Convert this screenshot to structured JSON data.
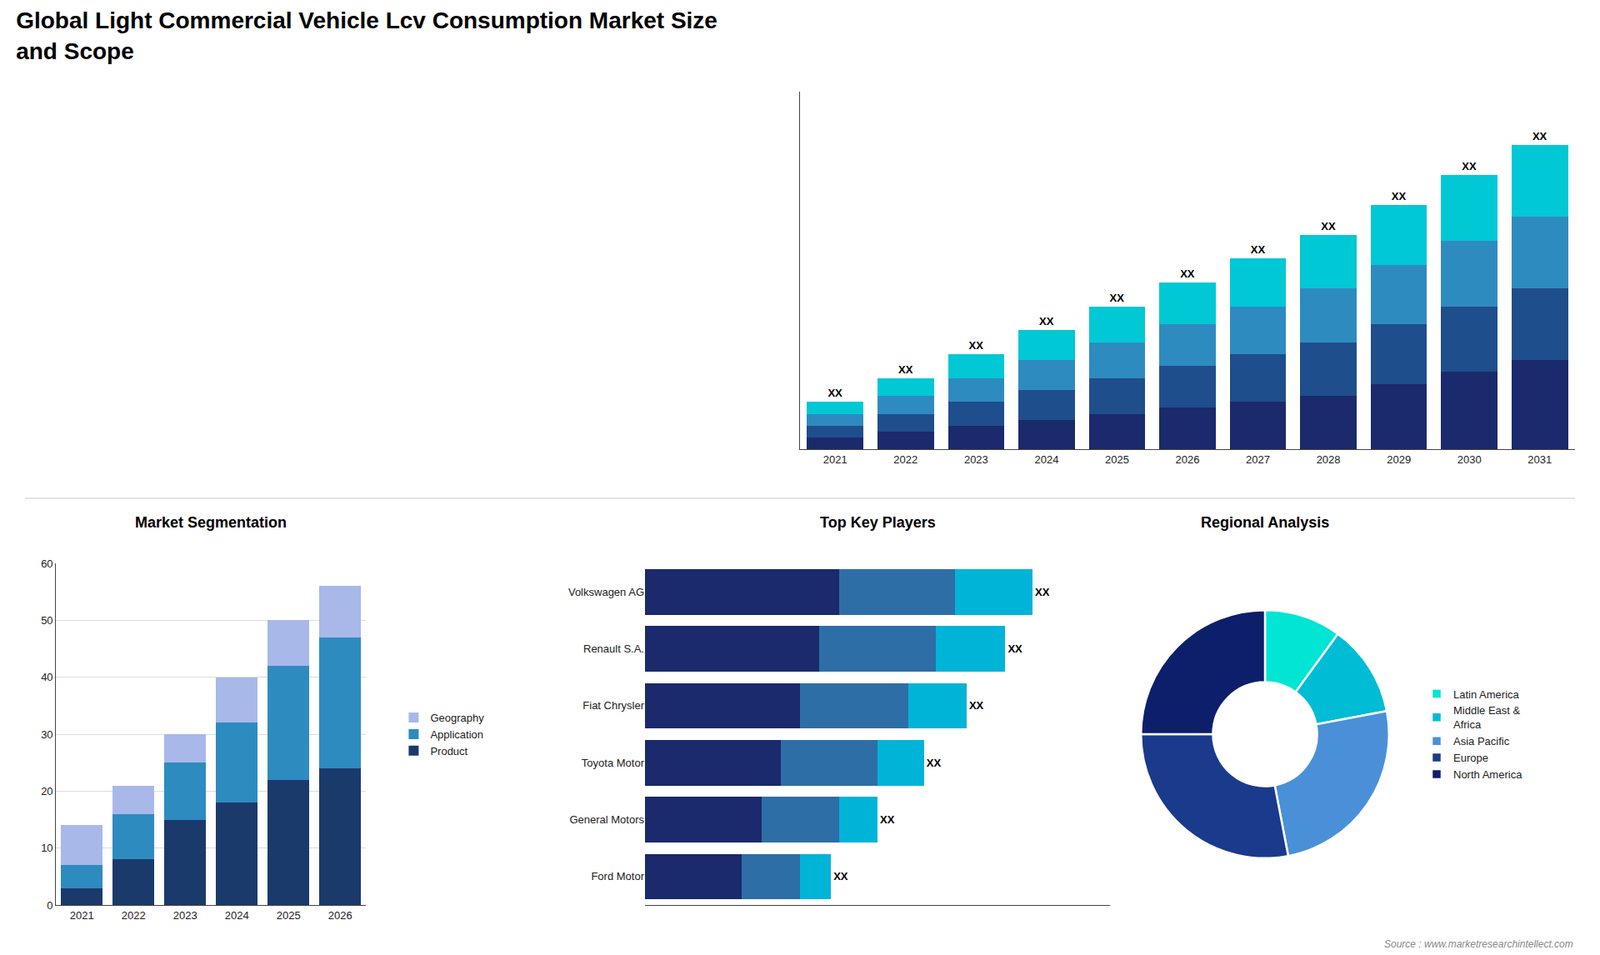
{
  "chart_data": [
    {
      "type": "bar",
      "title": "Global Light Commercial Vehicle Lcv Consumption Market Size\nand Scope",
      "categories": [
        "2021",
        "2022",
        "2023",
        "2024",
        "2025",
        "2026",
        "2027",
        "2028",
        "2029",
        "2030",
        "2031"
      ],
      "stacked": true,
      "series": [
        {
          "color": "#1a2a6c",
          "values": [
            2,
            3,
            4,
            5,
            6,
            7,
            8,
            9,
            11,
            13,
            15
          ]
        },
        {
          "color": "#1f4e8c",
          "values": [
            2,
            3,
            4,
            5,
            6,
            7,
            8,
            9,
            10,
            11,
            12
          ]
        },
        {
          "color": "#2e8bc0",
          "values": [
            2,
            3,
            4,
            5,
            6,
            7,
            8,
            9,
            10,
            11,
            12
          ]
        },
        {
          "color": "#00c8d4",
          "values": [
            2,
            3,
            4,
            5,
            6,
            7,
            8,
            9,
            10,
            11,
            12
          ],
          "value_labels": [
            "XX",
            "XX",
            "XX",
            "XX",
            "XX",
            "XX",
            "XX",
            "XX",
            "XX",
            "XX",
            "XX"
          ]
        }
      ],
      "ylim": [
        0,
        60
      ],
      "tick_labels": "x"
    },
    {
      "type": "bar",
      "title": "Market Segmentation",
      "categories": [
        "2021",
        "2022",
        "2023",
        "2024",
        "2025",
        "2026"
      ],
      "stacked": true,
      "series": [
        {
          "name": "Product",
          "color": "#1a3a6c",
          "values": [
            3,
            8,
            15,
            18,
            22,
            24
          ]
        },
        {
          "name": "Application",
          "color": "#2e8bc0",
          "values": [
            4,
            8,
            10,
            14,
            20,
            23
          ]
        },
        {
          "name": "Geography",
          "color": "#a8b8e8",
          "values": [
            7,
            5,
            5,
            8,
            8,
            9
          ]
        }
      ],
      "ylim": [
        0,
        60
      ],
      "yticks": [
        0,
        10,
        20,
        30,
        40,
        50,
        60
      ],
      "grid": true,
      "legend": "right"
    },
    {
      "type": "bar",
      "title": "Top Key Players",
      "orientation": "horizontal",
      "categories": [
        "Volkswagen AG",
        "Renault S.A.",
        "Fiat Chrysler",
        "Toyota Motor",
        "General Motors",
        "Ford Motor"
      ],
      "stacked": true,
      "series": [
        {
          "color": "#1a2a6c",
          "values": [
            5,
            4.5,
            4,
            3.5,
            3,
            2.5
          ]
        },
        {
          "color": "#2e6ea6",
          "values": [
            3,
            3,
            2.8,
            2.5,
            2,
            1.5
          ]
        },
        {
          "color": "#00b4d8",
          "values": [
            2,
            1.8,
            1.5,
            1.2,
            1,
            0.8
          ],
          "value_labels": [
            "XX",
            "XX",
            "XX",
            "XX",
            "XX",
            "XX"
          ]
        }
      ],
      "xlim": [
        0,
        12
      ],
      "tick_labels": "y"
    },
    {
      "type": "pie",
      "title": "Regional Analysis",
      "categories": [
        "Latin America",
        "Middle East &\nAfrica",
        "Asia Pacific",
        "Europe",
        "North America"
      ],
      "values": [
        10,
        12,
        25,
        28,
        25
      ],
      "colors": [
        "#00e5d4",
        "#00bcd4",
        "#4a90d9",
        "#1a3a8c",
        "#0d1f6b"
      ],
      "legend": "right",
      "annotations": [
        "Source : www.marketresearchintellect.com"
      ]
    }
  ]
}
